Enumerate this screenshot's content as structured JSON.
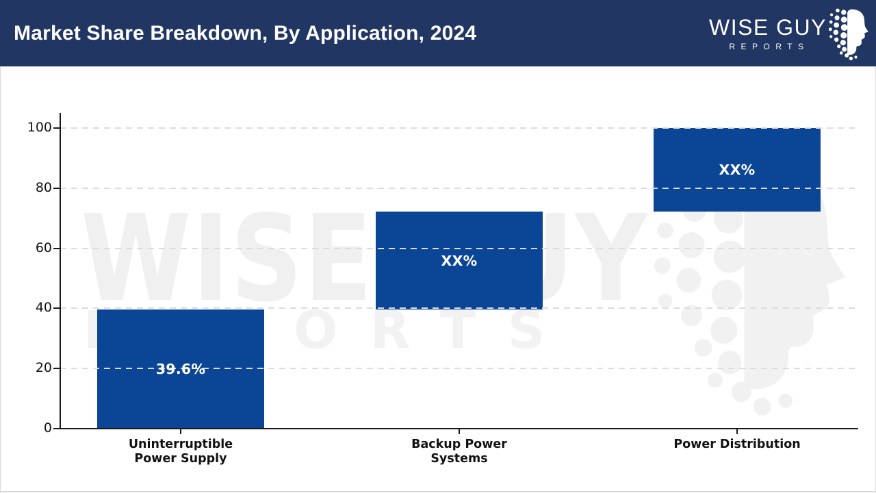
{
  "header": {
    "title": "Market Share Breakdown, By Application, 2024",
    "logo": {
      "name": "WISE GUY",
      "sub": "REPORTS"
    }
  },
  "watermark": {
    "line1": "WISE GUY",
    "line2": "REPORTS"
  },
  "chart_data": {
    "type": "bar",
    "subtype": "floating-waterfall-segments",
    "title": "Market Share Breakdown, By Application, 2024",
    "categories": [
      [
        "Uninterruptible",
        "Power Supply"
      ],
      [
        "Backup Power",
        "Systems"
      ],
      [
        "Power Distribution"
      ]
    ],
    "bars": [
      {
        "category": "Uninterruptible Power Supply",
        "label": "39.6%",
        "start": 0,
        "end": 39.6
      },
      {
        "category": "Backup Power Systems",
        "label": "XX%",
        "start": 39.6,
        "end": 72.2
      },
      {
        "category": "Power Distribution",
        "label": "XX%",
        "start": 72.2,
        "end": 100
      }
    ],
    "yticks": [
      0,
      20,
      40,
      60,
      80,
      100
    ],
    "ylim": [
      0,
      105
    ],
    "grid": "dashed-horizontal",
    "legend": "none",
    "bar_color": "#0b4596",
    "bar_label_color": "#ffffff",
    "axis_color": "#1a1a1a",
    "grid_color": "#dcdcdc",
    "header_color": "#213663",
    "watermark_color": "#f0f0f0"
  }
}
